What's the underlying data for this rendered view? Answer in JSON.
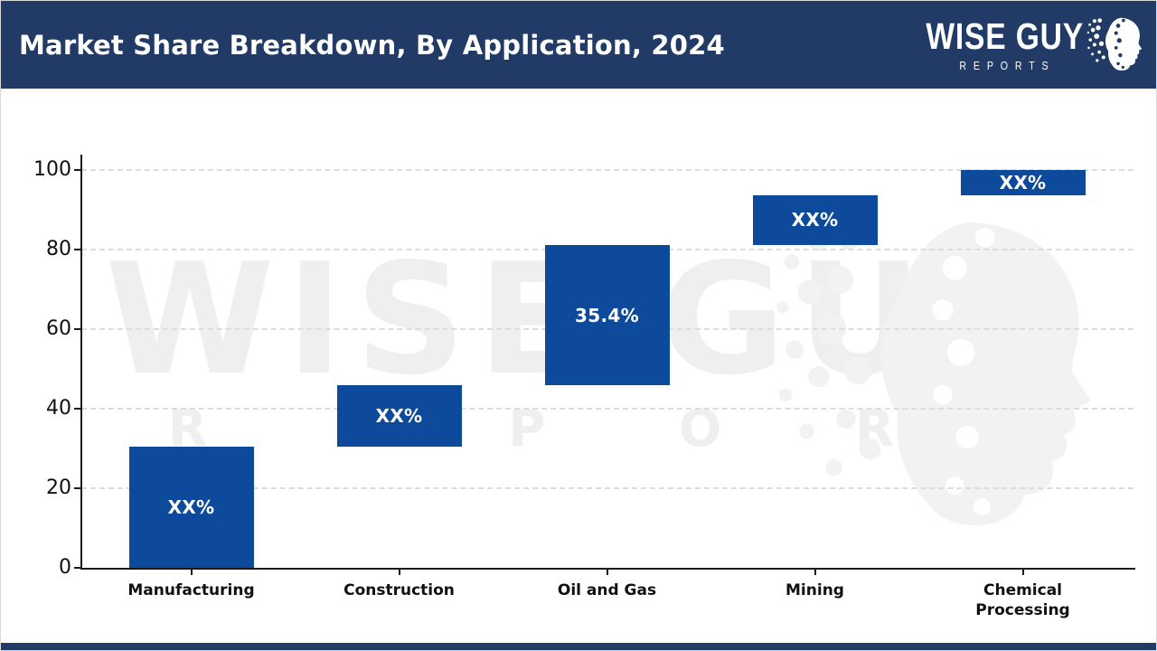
{
  "header": {
    "title": "Market Share Breakdown, By Application, 2024",
    "brand_line1": "WISE GUY",
    "brand_line2": "R E P O R T S"
  },
  "watermark": {
    "line1": "WISE GUY",
    "line2": "R E P O R T S"
  },
  "colors": {
    "header_background": "#213A66",
    "footer_background": "#213A66",
    "bar_blue": "#0D4A9C",
    "axis": "#1A1A1A",
    "gridline": "#DCDCDC",
    "bar_label_text": "#FFFFFF",
    "watermark_gray": "#EFEFEF",
    "watermark_head_gray": "#F2F2F2"
  },
  "chart_data": {
    "type": "bar",
    "subtype": "floating-segment-waterfall",
    "title": "Market Share Breakdown, By Application, 2024",
    "categories": [
      "Manufacturing",
      "Construction",
      "Oil and Gas",
      "Mining",
      "Chemical Processing"
    ],
    "segments": [
      {
        "category": "Manufacturing",
        "start": 0,
        "end": 30.4,
        "value": 30.4,
        "label": "XX%"
      },
      {
        "category": "Construction",
        "start": 30.4,
        "end": 45.8,
        "value": 15.4,
        "label": "XX%"
      },
      {
        "category": "Oil and Gas",
        "start": 45.8,
        "end": 81.2,
        "value": 35.4,
        "label": "35.4%"
      },
      {
        "category": "Mining",
        "start": 81.2,
        "end": 93.7,
        "value": 12.5,
        "label": "XX%"
      },
      {
        "category": "Chemical Processing",
        "start": 93.7,
        "end": 100,
        "value": 6.3,
        "label": "XX%"
      }
    ],
    "y_ticks": [
      0,
      20,
      40,
      60,
      80,
      100
    ],
    "ylim": [
      0,
      100
    ],
    "xlabel": "",
    "ylabel": "",
    "grid": "horizontal-dashed",
    "legend": "none"
  }
}
